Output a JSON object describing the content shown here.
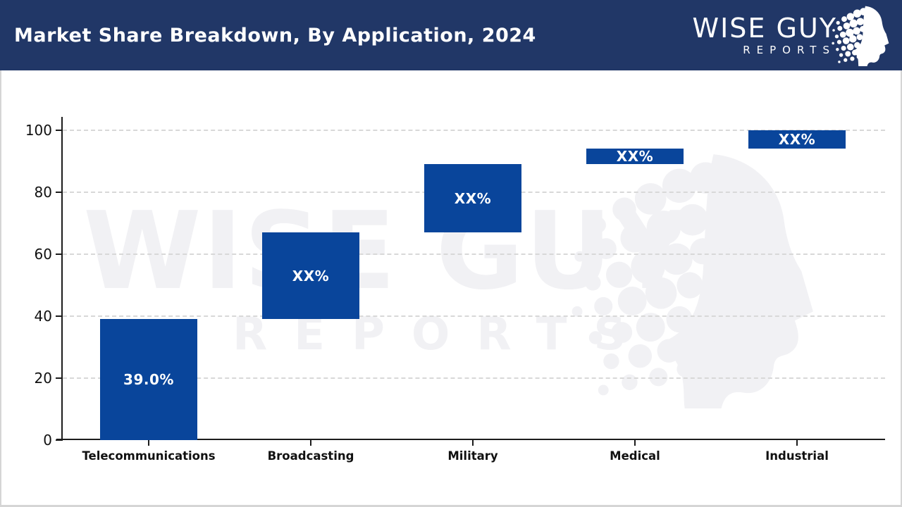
{
  "header": {
    "title": "Market Share Breakdown, By Application, 2024",
    "brand_line1": "WISE GUY",
    "brand_line2": "REPORTS"
  },
  "watermark": {
    "line1": "WISE GUY",
    "line2": "REPORTS"
  },
  "colors": {
    "header_bg": "#213767",
    "bar": "#09459b",
    "grid": "#d8d8d8",
    "axis": "#1c1c1c",
    "watermark": "#f1f1f4",
    "border": "#d5d5d5"
  },
  "chart_data": {
    "type": "bar",
    "variant": "waterfall-breakdown",
    "title": "Market Share Breakdown, By Application, 2024",
    "categories": [
      "Telecommunications",
      "Broadcasting",
      "Military",
      "Medical",
      "Industrial"
    ],
    "segments": [
      {
        "category": "Telecommunications",
        "start": 0,
        "end": 39,
        "value_label": "39.0%"
      },
      {
        "category": "Broadcasting",
        "start": 39,
        "end": 67,
        "value_label": "XX%"
      },
      {
        "category": "Military",
        "start": 67,
        "end": 89,
        "value_label": "XX%"
      },
      {
        "category": "Medical",
        "start": 89,
        "end": 94,
        "value_label": "XX%"
      },
      {
        "category": "Industrial",
        "start": 94,
        "end": 100,
        "value_label": "XX%"
      }
    ],
    "xlabel": "",
    "ylabel": "",
    "yticks": [
      0,
      20,
      40,
      60,
      80,
      100
    ],
    "ylim": [
      0,
      105
    ],
    "grid": {
      "axis": "y",
      "style": "dashed"
    },
    "legend": null,
    "bar_value_labels_inside": true
  }
}
